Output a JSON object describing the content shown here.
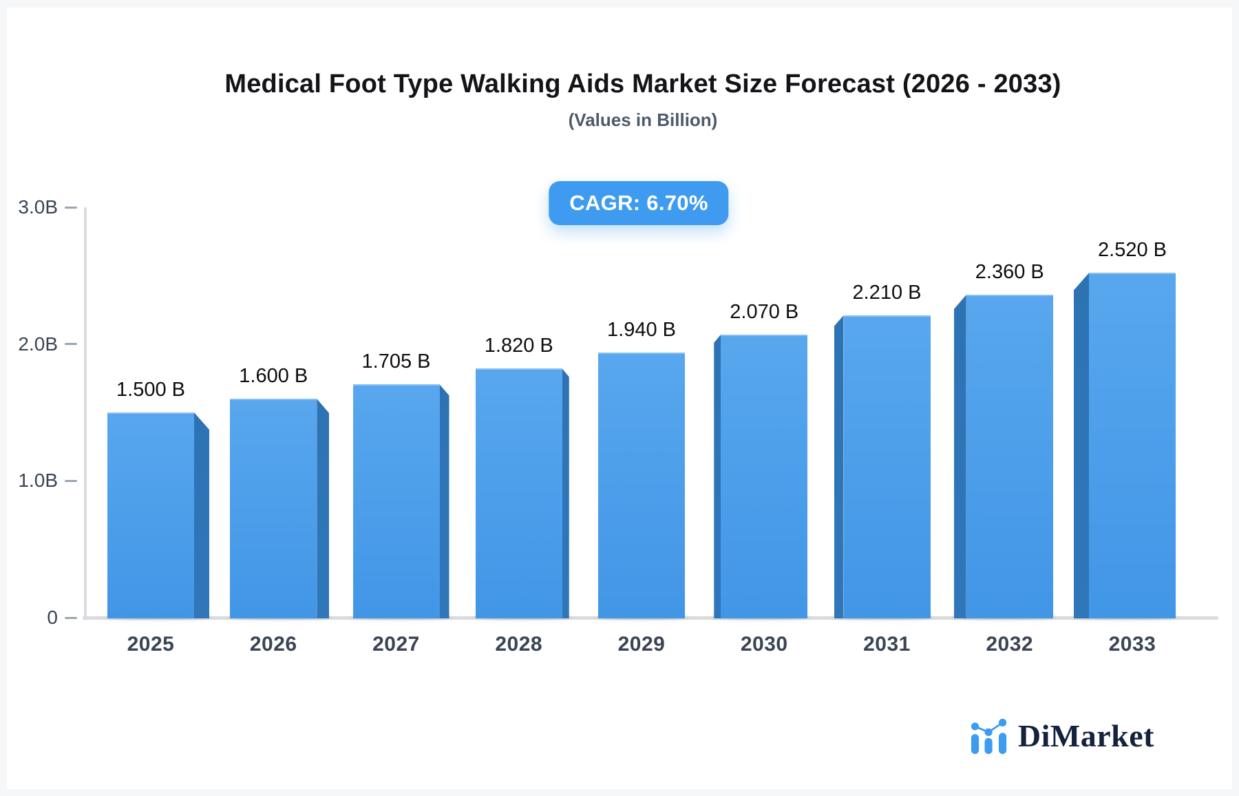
{
  "header": {
    "title": "Medical Foot Type Walking Aids Market Size Forecast (2026 - 2033)",
    "subtitle": "(Values in Billion)"
  },
  "cagr_badge": {
    "label": "CAGR: 6.70%",
    "bg": "#3f9bef"
  },
  "chart_data": {
    "type": "bar",
    "title": "Medical Foot Type Walking Aids Market Size Forecast (2026 - 2033)",
    "subtitle": "(Values in Billion)",
    "unit": "Billion",
    "cagr_percent": 6.7,
    "categories": [
      "2025",
      "2026",
      "2027",
      "2028",
      "2029",
      "2030",
      "2031",
      "2032",
      "2033"
    ],
    "values": [
      1.5,
      1.6,
      1.705,
      1.82,
      1.94,
      2.07,
      2.21,
      2.36,
      2.52
    ],
    "value_labels": [
      "1.500 B",
      "1.600 B",
      "1.705 B",
      "1.820 B",
      "1.940 B",
      "2.070 B",
      "2.210 B",
      "2.360 B",
      "2.520 B"
    ],
    "xlabel": "",
    "ylabel": "",
    "ylim": [
      0,
      3.0
    ],
    "yticks": [
      {
        "value": 3.0,
        "label": "3.0B"
      },
      {
        "value": 2.0,
        "label": "2.0B"
      },
      {
        "value": 1.0,
        "label": "1.0B"
      },
      {
        "value": 0.0,
        "label": "0"
      }
    ],
    "grid": false,
    "legend": false,
    "style_3d": true,
    "colors": {
      "bar_top": "#58a7ee",
      "bar_bottom": "#4196e6",
      "bar_side": "#2d73b4",
      "axis_line": "#d9dbde",
      "tick_dash": "#9ba4ae",
      "tick_text": "#3a4453",
      "value_text": "#0d0d10",
      "badge_bg": "#3f9bef"
    }
  },
  "logo": {
    "text": "DiMarket",
    "icon": "mini-bar-chart-icon",
    "color": "#3d9bf0"
  }
}
